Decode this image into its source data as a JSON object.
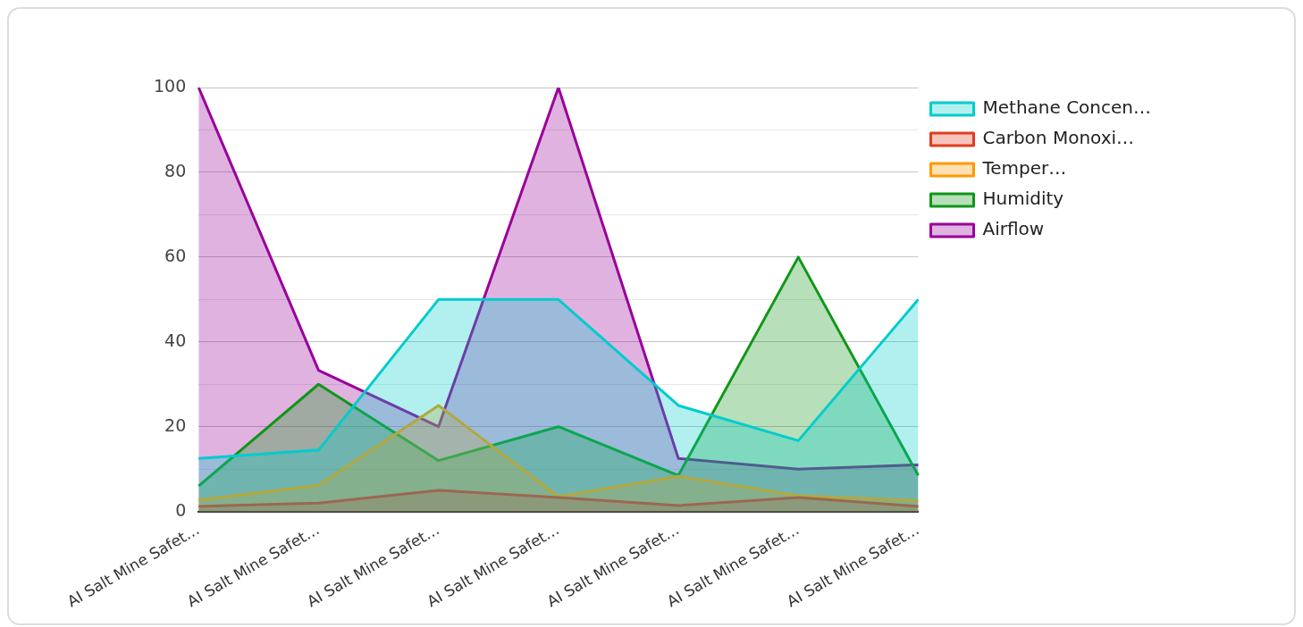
{
  "chart_data": {
    "type": "area",
    "categories": [
      "AI Salt Mine Safet…",
      "AI Salt Mine Safet…",
      "AI Salt Mine Safet…",
      "AI Salt Mine Safet…",
      "AI Salt Mine Safet…",
      "AI Salt Mine Safet…",
      "AI Salt Mine Safet…"
    ],
    "series": [
      {
        "name": "Methane Concen…",
        "color": "#00cccc",
        "values": [
          12.5,
          14.5,
          50,
          50,
          25,
          16.7,
          50
        ]
      },
      {
        "name": "Carbon Monoxi…",
        "color": "#e03c1c",
        "values": [
          1.2,
          2,
          5,
          3.3,
          1.4,
          3.3,
          1.2
        ]
      },
      {
        "name": "Temper…",
        "color": "#ff9900",
        "values": [
          2.7,
          6.2,
          25,
          3.5,
          8.3,
          3.7,
          2.5
        ]
      },
      {
        "name": "Humidity",
        "color": "#109618",
        "values": [
          6,
          30,
          12,
          20,
          8.5,
          60,
          8.5
        ]
      },
      {
        "name": "Airflow",
        "color": "#990099",
        "values": [
          100,
          33.3,
          20,
          100,
          12.5,
          10,
          11
        ]
      }
    ],
    "ylim": [
      0,
      100
    ],
    "yticks": [
      0,
      {
        "value": 10,
        "label": null
      },
      20,
      {
        "value": 30,
        "label": null
      },
      40,
      {
        "value": 50,
        "label": null
      },
      60,
      {
        "value": 70,
        "label": null
      },
      80,
      {
        "value": 90,
        "label": null
      },
      100
    ],
    "grid": "y",
    "legend": "right",
    "marker": "none",
    "line_style": "solid"
  }
}
